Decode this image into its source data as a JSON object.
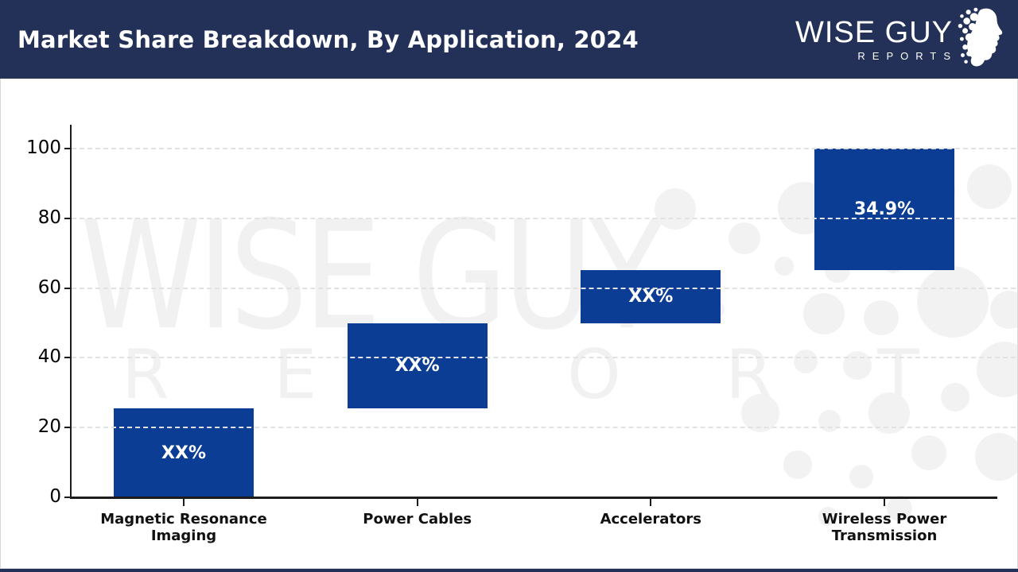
{
  "header": {
    "title": "Market Share Breakdown, By Application, 2024",
    "logo": {
      "line1": "WISE GUY",
      "line2": "REPORTS"
    }
  },
  "watermark": {
    "line1": "WISE GUY",
    "line2": "R E P O R T S"
  },
  "colors": {
    "header_bg": "#233159",
    "bar": "#0b3d94",
    "grid": "#e2e2e2",
    "axis": "#1c1c1c",
    "watermark": "#f1f1f1",
    "bar_label": "#ffffff"
  },
  "chart_data": {
    "type": "bar",
    "subtype": "waterfall",
    "title": "Market Share Breakdown, By Application, 2024",
    "categories": [
      "Magnetic Resonance Imaging",
      "Power Cables",
      "Accelerators",
      "Wireless Power Transmission"
    ],
    "category_lines": [
      [
        "Magnetic Resonance",
        "Imaging"
      ],
      [
        "Power Cables"
      ],
      [
        "Accelerators"
      ],
      [
        "Wireless Power",
        "Transmission"
      ]
    ],
    "segments": [
      {
        "category": "Magnetic Resonance Imaging",
        "start": 0,
        "end": 25.5,
        "value": 25.5,
        "label": "XX%"
      },
      {
        "category": "Power Cables",
        "start": 25.5,
        "end": 49.9,
        "value": 24.4,
        "label": "XX%"
      },
      {
        "category": "Accelerators",
        "start": 49.9,
        "end": 65.1,
        "value": 15.2,
        "label": "XX%"
      },
      {
        "category": "Wireless Power Transmission",
        "start": 65.1,
        "end": 100,
        "value": 34.9,
        "label": "34.9%"
      }
    ],
    "yticks": [
      0,
      20,
      40,
      60,
      80,
      100
    ],
    "ylim": [
      0,
      105
    ],
    "xlabel": "",
    "ylabel": "",
    "grid": "horizontal dashed",
    "legend": "none",
    "bar_color": "#0b3d94"
  }
}
